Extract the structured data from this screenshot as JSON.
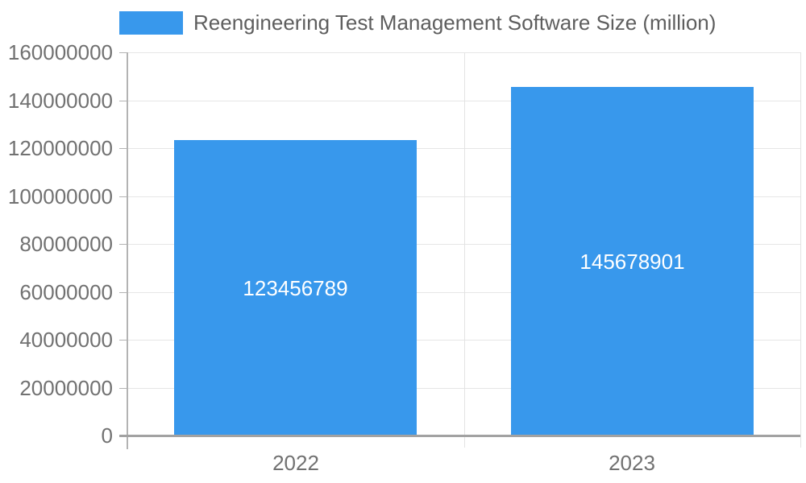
{
  "chart_data": {
    "type": "bar",
    "title": "Reengineering Test Management Software Size (million)",
    "categories": [
      "2022",
      "2023"
    ],
    "series": [
      {
        "name": "Reengineering Test Management Software Size (million)",
        "values": [
          123456789,
          145678901
        ]
      }
    ],
    "data_labels": [
      "123456789",
      "145678901"
    ],
    "xlabel": "",
    "ylabel": "",
    "ylim": [
      0,
      160000000
    ],
    "ytick_step": 20000000,
    "ytick_labels": [
      "0",
      "20000000",
      "40000000",
      "60000000",
      "80000000",
      "100000000",
      "120000000",
      "140000000",
      "160000000"
    ],
    "grid": true,
    "legend_position": "top",
    "colors": {
      "bar": "#3898ec",
      "data_label": "#ffffff",
      "axis_text": "#717171",
      "title_text": "#5e5e5e",
      "gridline": "#e6e6e6",
      "baseline": "#a2a2a2",
      "axis_line": "#b3b3b3"
    }
  }
}
